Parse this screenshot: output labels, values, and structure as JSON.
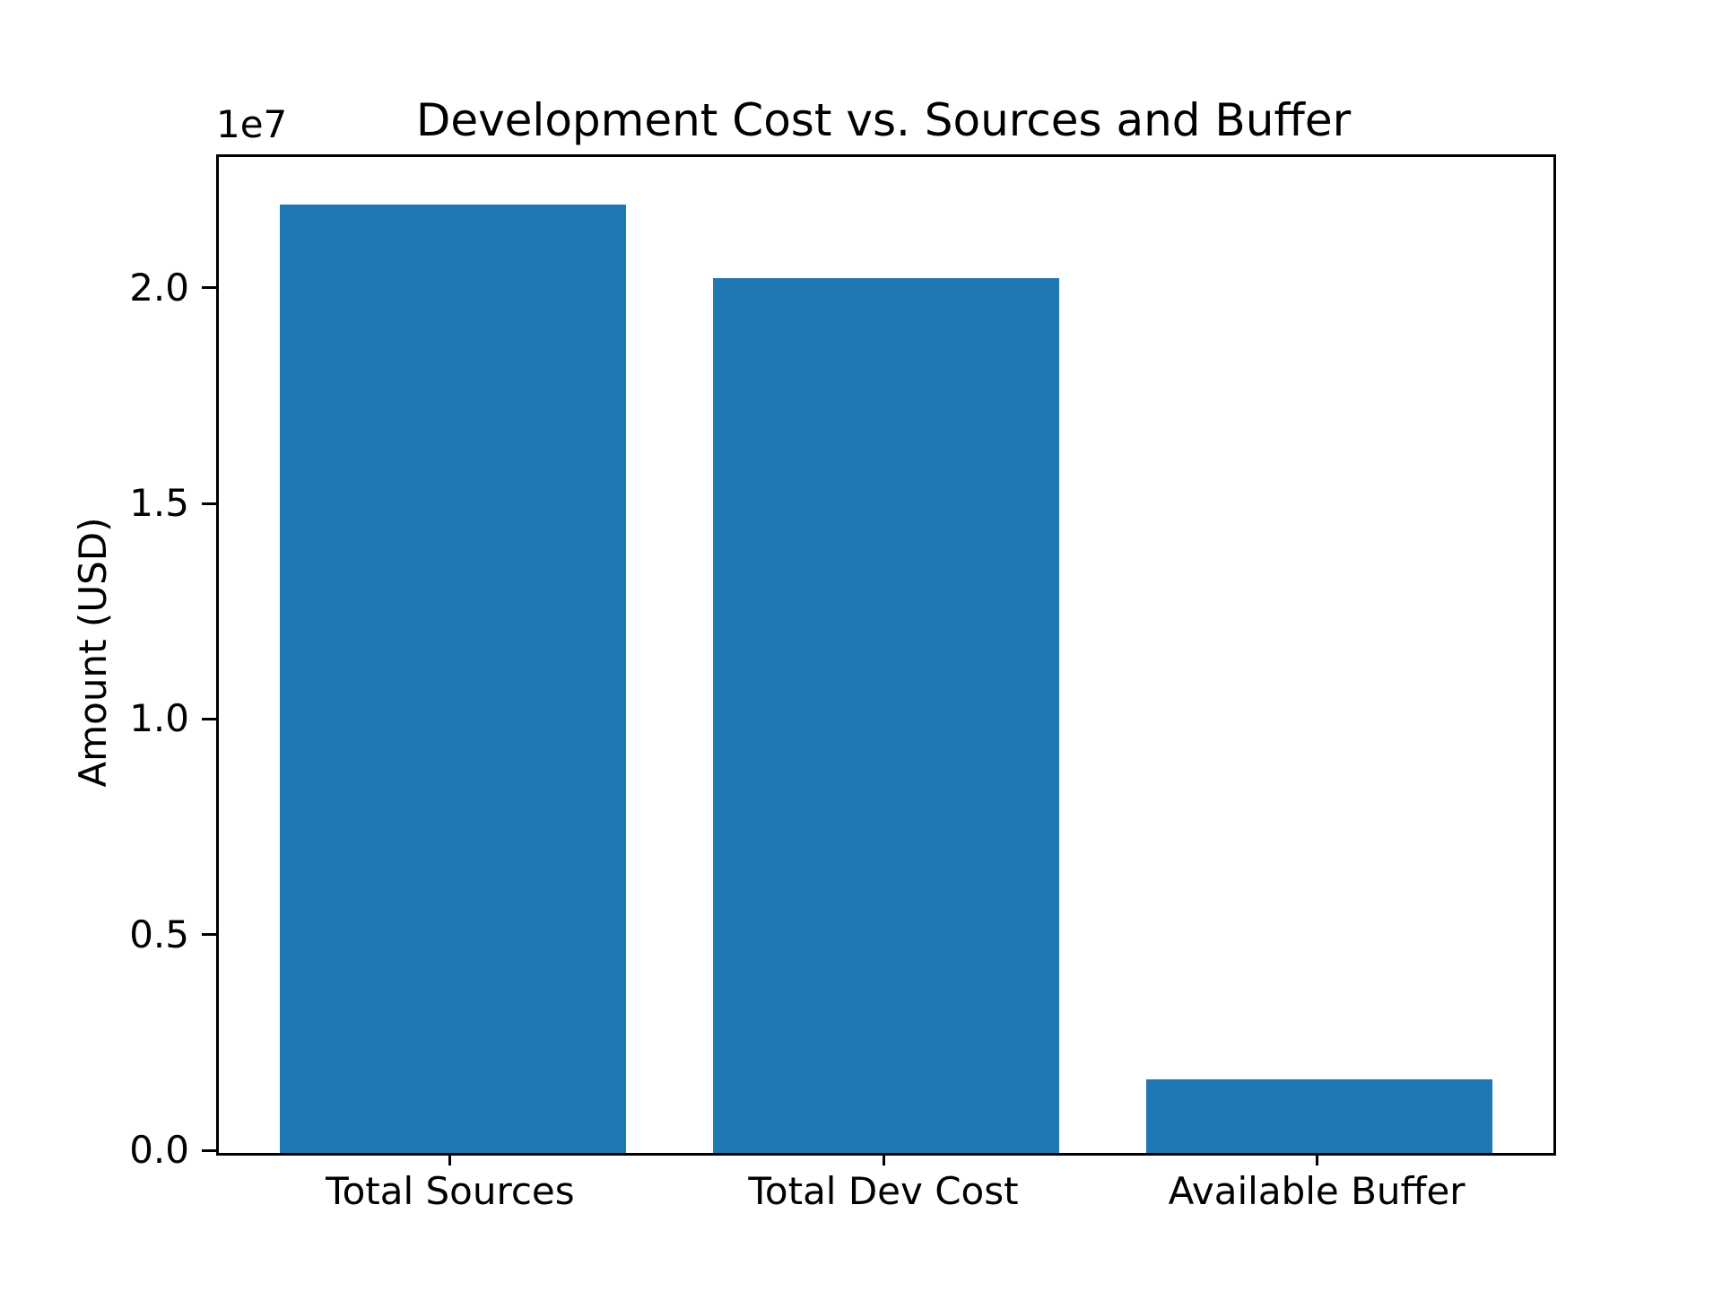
{
  "chart_data": {
    "type": "bar",
    "title": "Development Cost vs. Sources and Buffer",
    "xlabel": "",
    "ylabel": "Amount (USD)",
    "offset_text": "1e7",
    "categories": [
      "Total Sources",
      "Total Dev Cost",
      "Available Buffer"
    ],
    "values": [
      22000000,
      20300000,
      1700000
    ],
    "bar_color": "#1f77b4",
    "ylim": [
      0,
      23100000
    ],
    "yticks": [
      0,
      5000000,
      10000000,
      15000000,
      20000000
    ],
    "ytick_labels": [
      "0.0",
      "0.5",
      "1.0",
      "1.5",
      "2.0"
    ],
    "grid": false,
    "legend": null,
    "frame": "full-box",
    "background_color": "#ffffff",
    "text_color": "#000000"
  }
}
